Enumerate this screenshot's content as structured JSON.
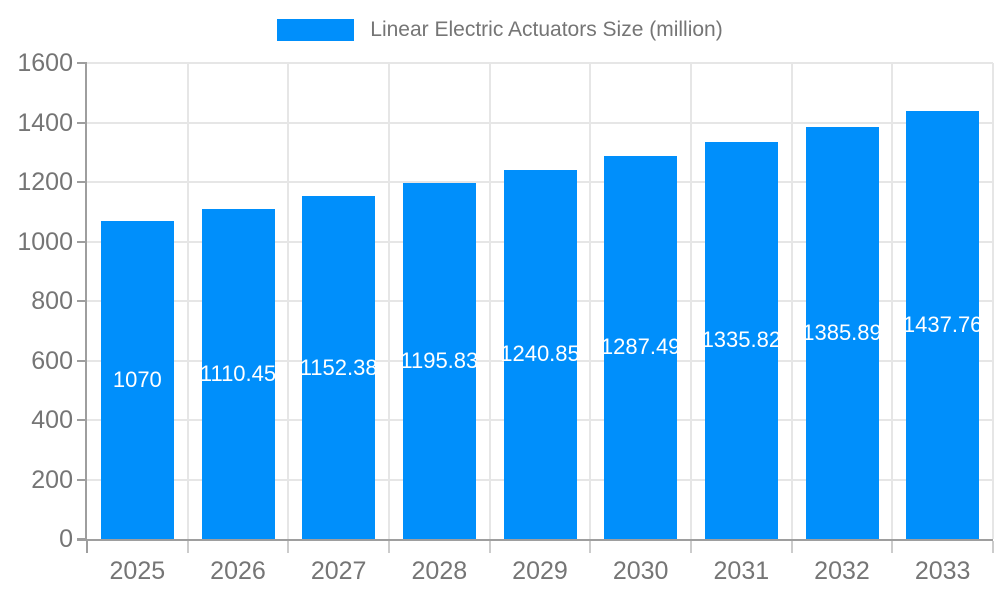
{
  "legend": {
    "label": "Linear Electric Actuators Size (million)"
  },
  "colors": {
    "bar": "#008FFB",
    "grid": "#E6E6E6",
    "axis": "#9E9E9E",
    "x_tick": "#CCCCCC",
    "tick_text": "#757575",
    "bar_label_text": "#FFFFFF",
    "background": "#FFFFFF"
  },
  "chart_data": {
    "type": "bar",
    "title": "Linear Electric Actuators Size (million)",
    "series_name": "Linear Electric Actuators Size (million)",
    "categories": [
      "2025",
      "2026",
      "2027",
      "2028",
      "2029",
      "2030",
      "2031",
      "2032",
      "2033"
    ],
    "values": [
      1070,
      1110.45,
      1152.38,
      1195.83,
      1240.85,
      1287.49,
      1335.82,
      1385.89,
      1437.76
    ],
    "data_labels": [
      "1070",
      "1110.45",
      "1152.38",
      "1195.83",
      "1240.85",
      "1287.49",
      "1335.82",
      "1385.89",
      "1437.76"
    ],
    "data_label_position": "inside-center",
    "xlabel": "",
    "ylabel": "",
    "ylim": [
      0,
      1600
    ],
    "yticks": [
      0,
      200,
      400,
      600,
      800,
      1000,
      1200,
      1400,
      1600
    ],
    "grid": true,
    "legend_position": "top-center"
  }
}
